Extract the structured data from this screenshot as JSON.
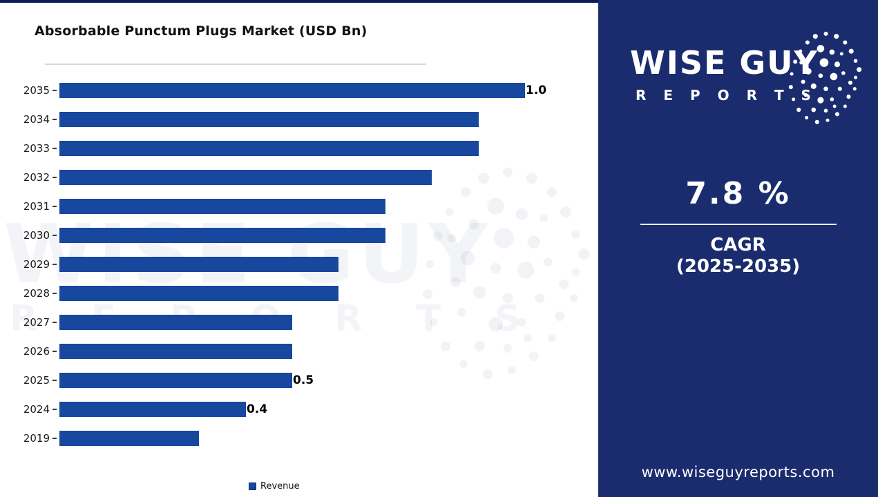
{
  "chart_data": {
    "type": "bar",
    "orientation": "horizontal",
    "title": "Absorbable Punctum Plugs Market (USD Bn)",
    "unit": "USD Bn",
    "series_name": "Revenue",
    "categories": [
      "2035",
      "2034",
      "2033",
      "2032",
      "2031",
      "2030",
      "2029",
      "2028",
      "2027",
      "2026",
      "2025",
      "2024",
      "2019"
    ],
    "values": [
      1.0,
      0.9,
      0.9,
      0.8,
      0.7,
      0.7,
      0.6,
      0.6,
      0.5,
      0.5,
      0.5,
      0.4,
      0.3
    ],
    "bar_value_labels": [
      "1.0",
      "",
      "",
      "",
      "",
      "",
      "",
      "",
      "",
      "",
      "0.5",
      "0.4",
      ""
    ],
    "xlim": [
      0,
      1.0
    ],
    "bar_color": "#17479E",
    "grid": false,
    "legend_position": "bottom"
  },
  "watermark": {
    "line1": "WISE GUY",
    "line2": "R E P O R T S"
  },
  "sidebar": {
    "logo_line1": "WISE GUY",
    "logo_line2": "R E P O R T S",
    "cagr_value": "7.8 %",
    "cagr_label": "CAGR",
    "cagr_range": "(2025-2035)",
    "website": "www.wiseguyreports.com",
    "colors": {
      "background": "#1B2C6E",
      "bar": "#17479E"
    }
  }
}
